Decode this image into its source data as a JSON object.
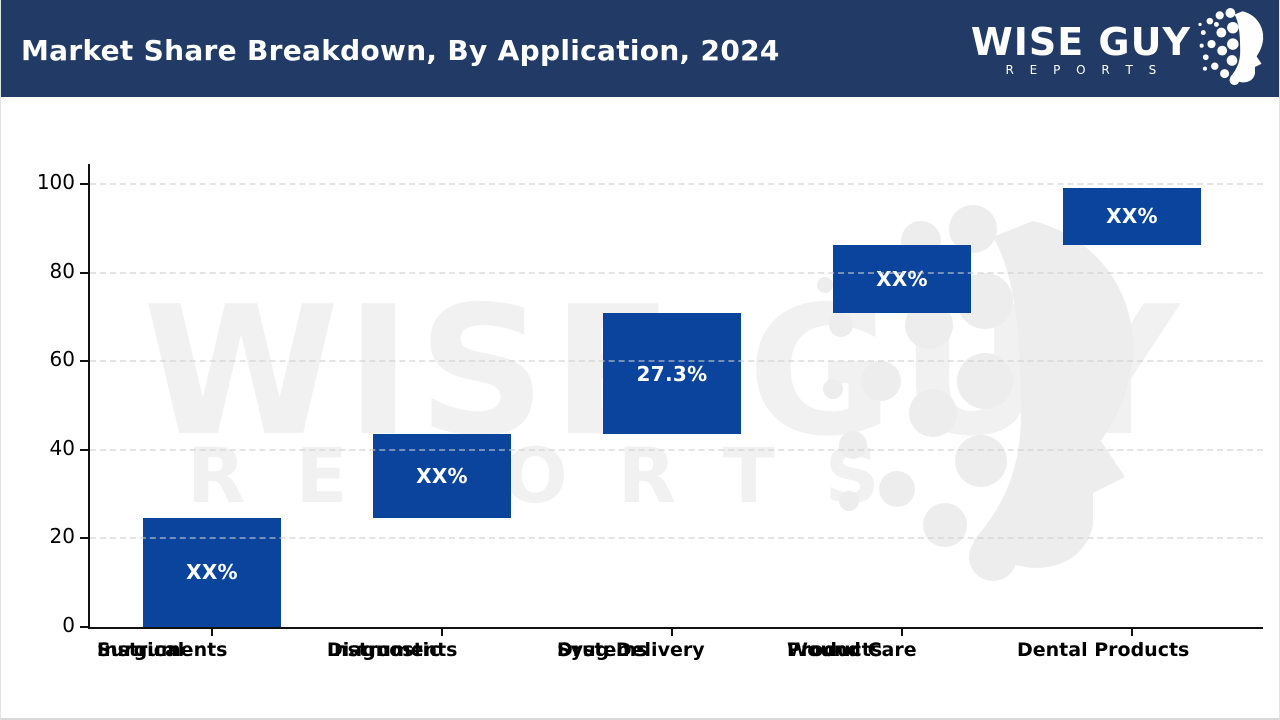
{
  "header": {
    "title": "Market Share Breakdown, By Application, 2024",
    "background_color": "#223a66",
    "logo": {
      "line1": "WISE GUY",
      "line2": "R E P O R T S"
    }
  },
  "watermark": {
    "line1": "WISE GUY",
    "line2": "REPORTS"
  },
  "chart_data": {
    "type": "bar",
    "subtype": "floating-waterfall",
    "title": "Market Share Breakdown, By Application, 2024",
    "categories": [
      "Surgical Instruments",
      "Diagnostic Instruments",
      "Drug Delivery Systems",
      "Wound Care Products",
      "Dental Products"
    ],
    "categories_lines": [
      [
        "Surgical",
        "Instruments"
      ],
      [
        "Diagnostic",
        "Instruments"
      ],
      [
        "Drug Delivery",
        "Systems"
      ],
      [
        "Wound Care",
        "Products"
      ],
      [
        "Dental Products"
      ]
    ],
    "segments": [
      {
        "category": "Surgical Instruments",
        "start": 0,
        "end": 24.7,
        "label": "XX%"
      },
      {
        "category": "Diagnostic Instruments",
        "start": 24.7,
        "end": 43.5,
        "label": "XX%"
      },
      {
        "category": "Drug Delivery Systems",
        "start": 43.5,
        "end": 70.8,
        "label": "27.3%"
      },
      {
        "category": "Wound Care Products",
        "start": 70.8,
        "end": 86.2,
        "label": "XX%"
      },
      {
        "category": "Dental Products",
        "start": 86.2,
        "end": 99.2,
        "label": "XX%"
      }
    ],
    "y_ticks": [
      0,
      20,
      40,
      60,
      80,
      100
    ],
    "ylim": [
      0,
      104.5
    ],
    "xlabel": "",
    "ylabel": "",
    "bar_color": "#0a449c",
    "bar_label_color": "#ffffff",
    "grid": "horizontal-dashed",
    "grid_color": "#d9d9d9",
    "axis_color": "#111111",
    "legend": "none"
  }
}
